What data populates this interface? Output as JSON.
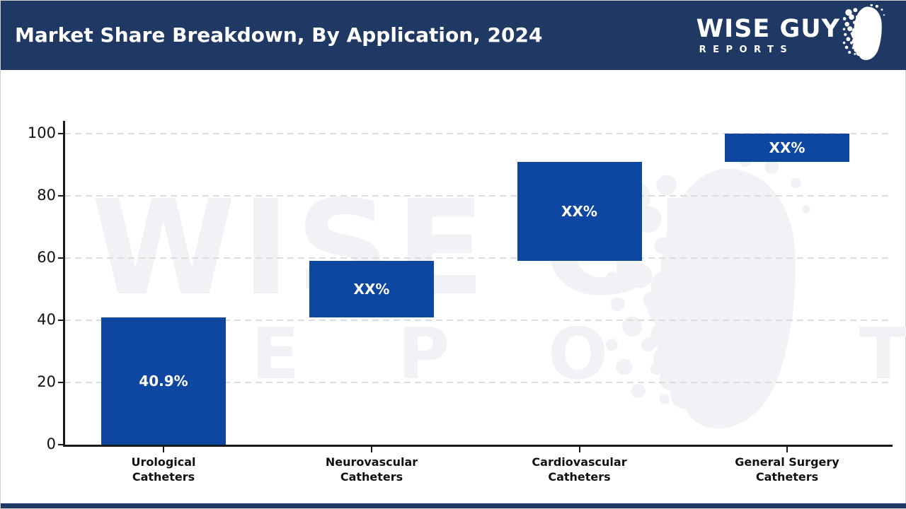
{
  "page": {
    "background": "#ffffff",
    "border_color": "#d0d0d0"
  },
  "header": {
    "title": "Market Share Breakdown, By Application, 2024",
    "bg_color": "#1f3864",
    "logo": {
      "line1": "WISE GUY",
      "line2": "REPORTS",
      "color": "#ffffff"
    }
  },
  "watermark": {
    "line1": "WISE GU",
    "line2": "R E P O R T S",
    "color": "#f1f2f5"
  },
  "footer": {
    "bg_color": "#1f3864"
  },
  "chart_data": {
    "type": "bar",
    "variant": "waterfall",
    "title": "Market Share Breakdown, By Application, 2024",
    "xlabel": "",
    "ylabel": "",
    "ylim": [
      0,
      104
    ],
    "yticks": [
      0,
      20,
      40,
      60,
      80,
      100
    ],
    "grid": "horizontal-dashed",
    "legend": "none",
    "bar_color": "#0d47a1",
    "grid_color": "#dcdcdc",
    "axis_color": "#1a1a1a",
    "value_labels_inside_bars": true,
    "categories": [
      [
        "Urological",
        "Catheters"
      ],
      [
        "Neurovascular",
        "Catheters"
      ],
      [
        "Cardiovascular",
        "Catheters"
      ],
      [
        "General Surgery",
        "Catheters"
      ]
    ],
    "bars": [
      {
        "name": "urological-catheters",
        "start": 0,
        "end": 40.9,
        "label": "40.9%"
      },
      {
        "name": "neurovascular-catheters",
        "start": 40.9,
        "end": 59.0,
        "label": "XX%"
      },
      {
        "name": "cardiovascular-catheters",
        "start": 59.0,
        "end": 91.0,
        "label": "XX%"
      },
      {
        "name": "general-surgery-catheters",
        "start": 91.0,
        "end": 100.0,
        "label": "XX%"
      }
    ]
  }
}
